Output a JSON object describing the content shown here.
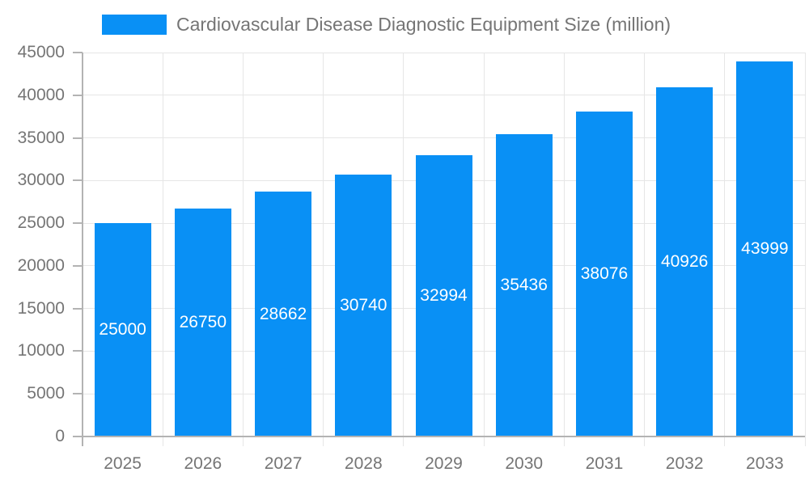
{
  "chart_data": {
    "type": "bar",
    "title": "Cardiovascular Disease Diagnostic Equipment Size (million)",
    "legend": [
      "Cardiovascular Disease Diagnostic Equipment Size (million)"
    ],
    "legend_position": "top",
    "categories": [
      "2025",
      "2026",
      "2027",
      "2028",
      "2029",
      "2030",
      "2031",
      "2032",
      "2033"
    ],
    "series": [
      {
        "name": "Cardiovascular Disease Diagnostic Equipment Size (million)",
        "values": [
          25000,
          26750,
          28662,
          30740,
          32994,
          35436,
          38076,
          40926,
          43999
        ]
      }
    ],
    "bar_value_labels": [
      "25000",
      "26750",
      "28662",
      "30740",
      "32994",
      "35436",
      "38076",
      "40926",
      "43999"
    ],
    "xlabel": "",
    "ylabel": "",
    "ylim": [
      0,
      45000
    ],
    "ytick_step": 5000,
    "yticks": [
      "0",
      "5000",
      "10000",
      "15000",
      "20000",
      "25000",
      "30000",
      "35000",
      "40000",
      "45000"
    ],
    "grid": true
  },
  "colors": {
    "bar": "#0990f5",
    "grid": "#e6e6e6",
    "axis": "#b3b3b3",
    "tick_text": "#757575",
    "bar_label_text": "#ffffff",
    "background": "#ffffff"
  }
}
